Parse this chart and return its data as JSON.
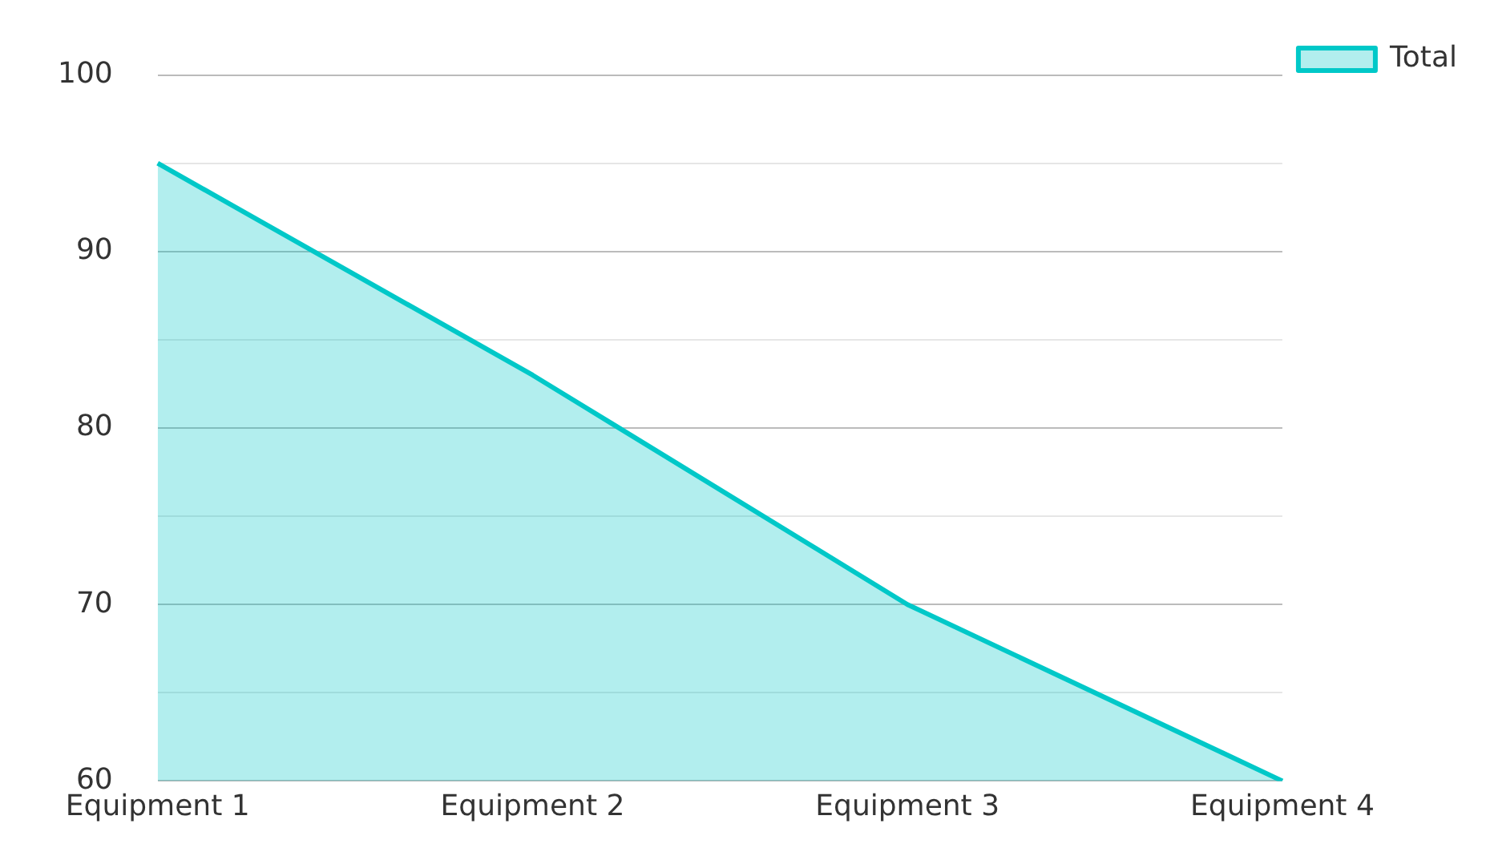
{
  "chart_data": {
    "type": "area",
    "categories": [
      "Equipment 1",
      "Equipment 2",
      "Equipment 3",
      "Equipment 4"
    ],
    "series": [
      {
        "name": "Total",
        "color": "#00c8c8",
        "values": [
          95,
          83,
          70,
          60
        ]
      }
    ],
    "ylim": [
      60,
      100
    ],
    "yticks": [
      60,
      {
        "value": 65,
        "label": null
      },
      70,
      {
        "value": 75,
        "label": null
      },
      80,
      {
        "value": 85,
        "label": null
      },
      90,
      {
        "value": 95,
        "label": null
      },
      100
    ],
    "grid": "y",
    "legend": "top right"
  }
}
